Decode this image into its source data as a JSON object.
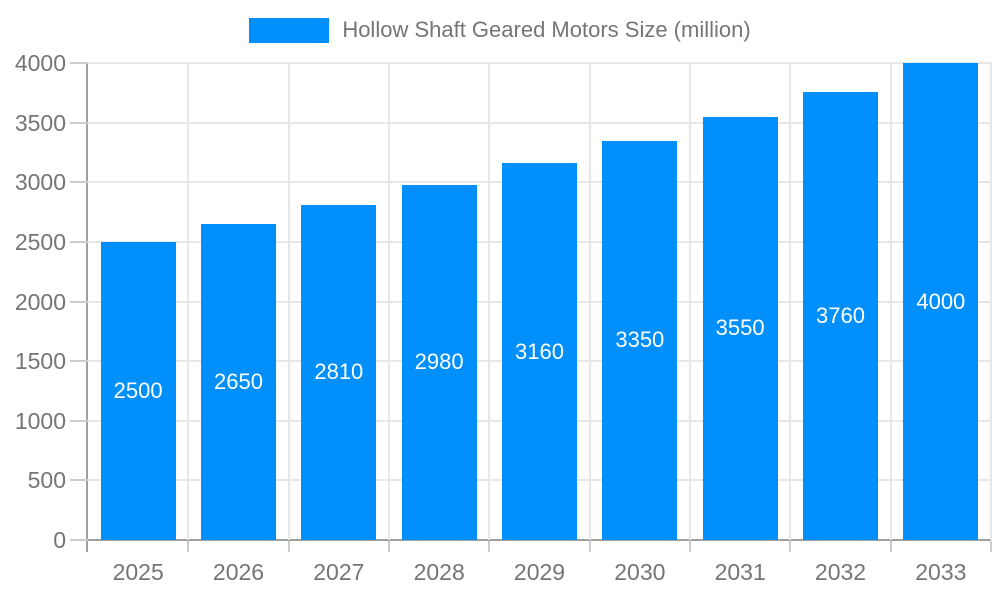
{
  "chart_data": {
    "type": "bar",
    "title": "Hollow Shaft Geared Motors Size (million)",
    "categories": [
      "2025",
      "2026",
      "2027",
      "2028",
      "2029",
      "2030",
      "2031",
      "2032",
      "2033"
    ],
    "values": [
      2500,
      2650,
      2810,
      2980,
      3160,
      3350,
      3550,
      3760,
      4000
    ],
    "series": [
      {
        "name": "Hollow Shaft Geared Motors Size (million)",
        "values": [
          2500,
          2650,
          2810,
          2980,
          3160,
          3350,
          3550,
          3760,
          4000
        ]
      }
    ],
    "xlabel": "",
    "ylabel": "",
    "ylim": [
      0,
      4000
    ],
    "yticks": [
      0,
      500,
      1000,
      1500,
      2000,
      2500,
      3000,
      3500,
      4000
    ],
    "grid": true,
    "legend_position": "top",
    "bar_color": "#008FFB",
    "bar_value_label_color": "#ffffff",
    "axis_label_color": "#757575",
    "legend_text_color": "#757575",
    "grid_color": "#e7e7e7",
    "axis_line_color": "#a0a0a0",
    "tick_color": "#cccccc"
  }
}
